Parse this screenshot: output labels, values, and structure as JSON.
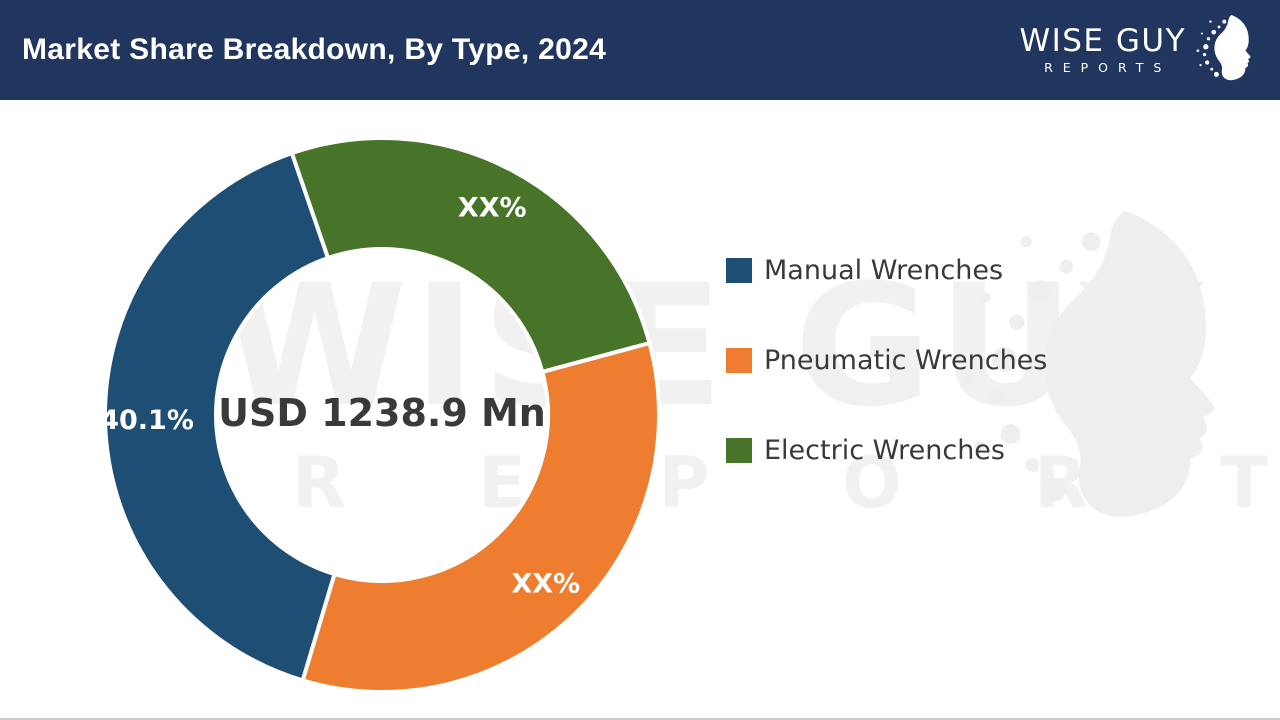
{
  "header": {
    "title": "Market Share Breakdown, By Type, 2024",
    "logo": {
      "line1": "WISE GUY",
      "line2": "REPORTS"
    }
  },
  "watermark": {
    "line1": "WISE GUY",
    "line2": "R E P O R T S"
  },
  "chart_data": {
    "type": "pie",
    "subtype": "donut",
    "title": "Market Share Breakdown, By Type, 2024",
    "center_label": "USD 1238.9 Mn",
    "start_angle_deg": -19,
    "units": "percent share of USD 1238.9 Mn",
    "slices": [
      {
        "name": "Electric Wrenches",
        "display_label": "XX%",
        "pct_estimate": 26.1,
        "color": "#477428"
      },
      {
        "name": "Pneumatic Wrenches",
        "display_label": "XX%",
        "pct_estimate": 33.8,
        "color": "#ee7d30"
      },
      {
        "name": "Manual Wrenches",
        "display_label": "40.1%",
        "pct_estimate": 40.1,
        "color": "#1f4e74"
      }
    ],
    "legend": [
      {
        "label": "Manual Wrenches",
        "color": "#1f4e74"
      },
      {
        "label": "Pneumatic Wrenches",
        "color": "#ee7d30"
      },
      {
        "label": "Electric Wrenches",
        "color": "#477428"
      }
    ],
    "legend_position": "right"
  },
  "colors": {
    "header_bg": "#21365e",
    "text_dark": "#3a3a3a",
    "watermark": "#f1f1f1",
    "watermark_face": "#efefef",
    "bottom_line": "#c9c9c9"
  }
}
